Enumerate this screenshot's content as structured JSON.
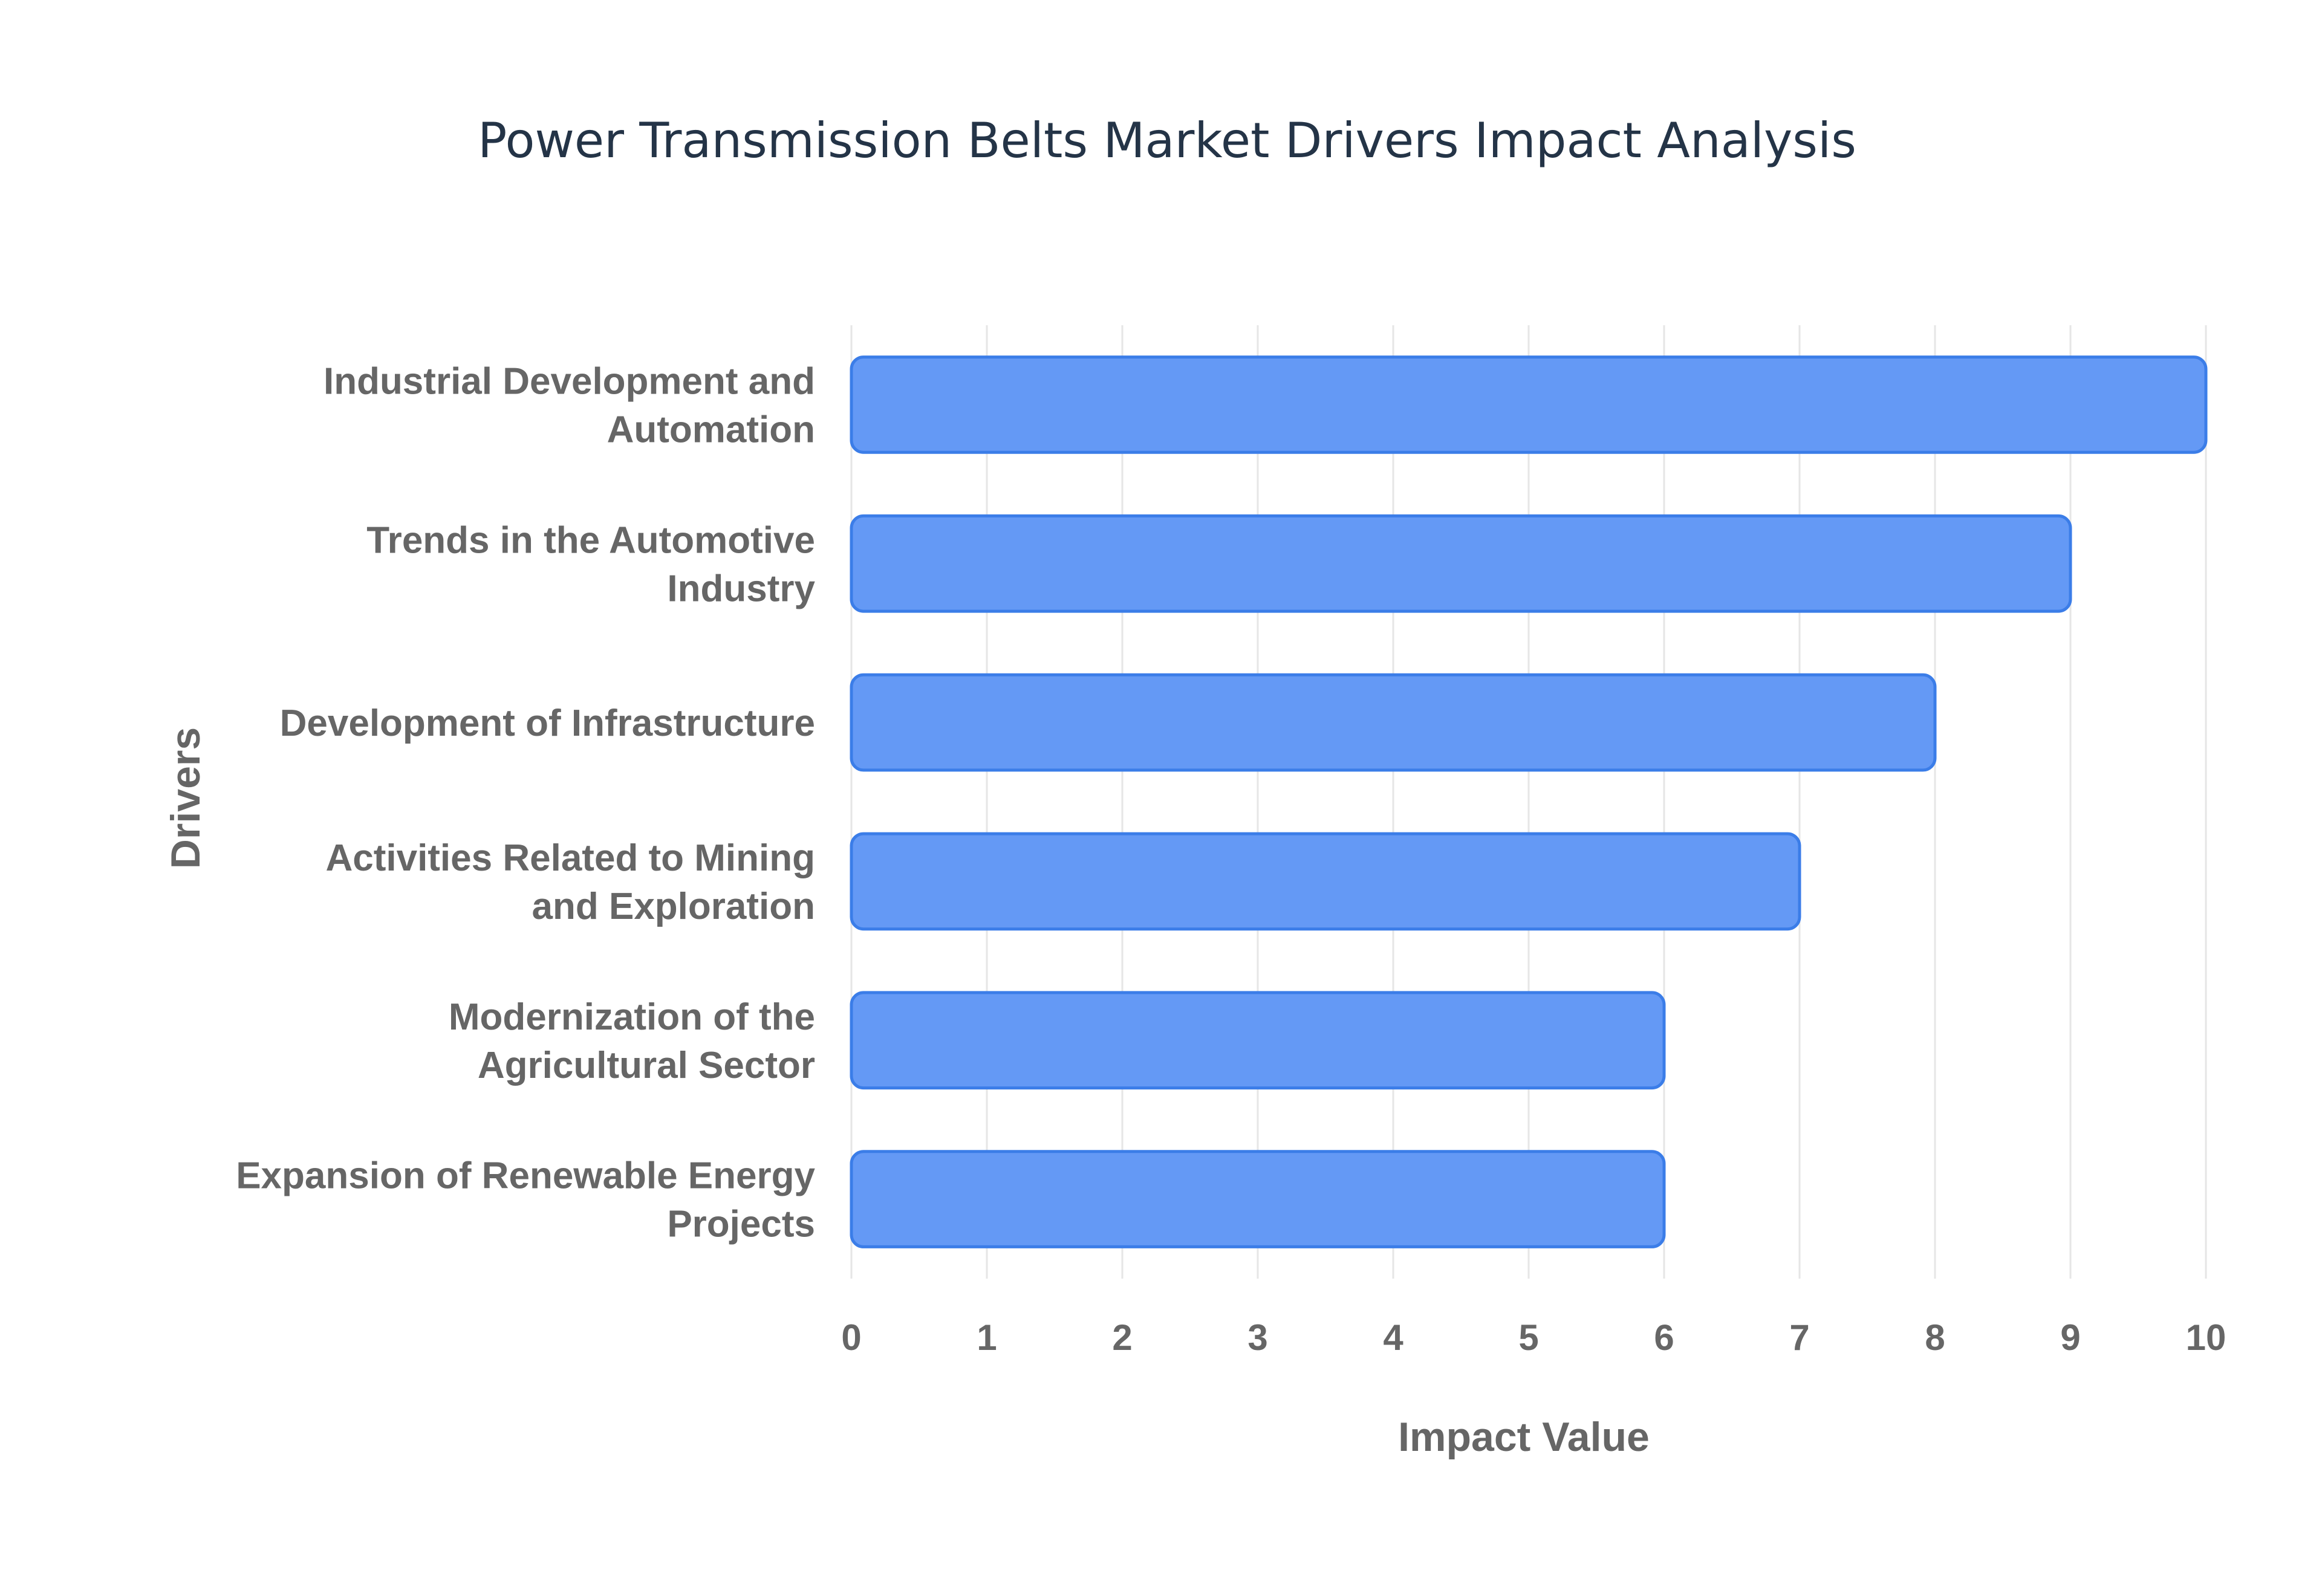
{
  "chart_data": {
    "type": "bar",
    "orientation": "horizontal",
    "title": "Power Transmission Belts Market Drivers Impact Analysis",
    "xlabel": "Impact Value",
    "ylabel": "Drivers",
    "categories": [
      [
        "Industrial Development and",
        "Automation"
      ],
      [
        "Trends in the Automotive",
        "Industry"
      ],
      [
        "Development of Infrastructure"
      ],
      [
        "Activities Related to Mining",
        "and Exploration"
      ],
      [
        "Modernization of the",
        "Agricultural Sector"
      ],
      [
        "Expansion of Renewable Energy",
        "Projects"
      ]
    ],
    "values": [
      10,
      9,
      8,
      7,
      6,
      6
    ],
    "xlim": [
      0,
      10
    ],
    "xticks": [
      "0",
      "1",
      "2",
      "3",
      "4",
      "5",
      "6",
      "7",
      "8",
      "9",
      "10"
    ],
    "grid": true,
    "legend": "none",
    "colors": {
      "bar_fill": "#6499f5",
      "bar_stroke": "#3b7de8"
    }
  }
}
